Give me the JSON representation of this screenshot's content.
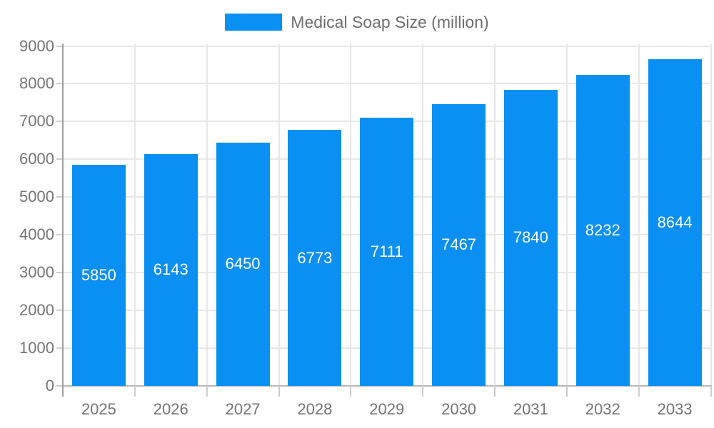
{
  "legend": {
    "label": "Medical Soap Size (million)"
  },
  "chart_data": {
    "type": "bar",
    "title": "Medical Soap Size (million)",
    "categories": [
      "2025",
      "2026",
      "2027",
      "2028",
      "2029",
      "2030",
      "2031",
      "2032",
      "2033"
    ],
    "values": [
      5850,
      6143,
      6450,
      6773,
      7111,
      7467,
      7840,
      8232,
      8644
    ],
    "series": [
      {
        "name": "Medical Soap Size (million)",
        "values": [
          5850,
          6143,
          6450,
          6773,
          7111,
          7467,
          7840,
          8232,
          8644
        ]
      }
    ],
    "xlabel": "",
    "ylabel": "",
    "ylim": [
      0,
      9000
    ],
    "ytick_step": 1000,
    "yticks": [
      0,
      1000,
      2000,
      3000,
      4000,
      5000,
      6000,
      7000,
      8000,
      9000
    ],
    "grid": true,
    "legend_position": "top",
    "data_labels": "inside-center-white"
  },
  "colors": {
    "bar": "#0a8ff2",
    "bar_label": "#ffffff",
    "axis_text": "#757575",
    "legend_text": "#6e6e6e",
    "gridline": "#e7e7e7",
    "baseline": "#b9b9b9",
    "y_axis_line": "#9e9e9e",
    "tick": "#cccccc"
  }
}
